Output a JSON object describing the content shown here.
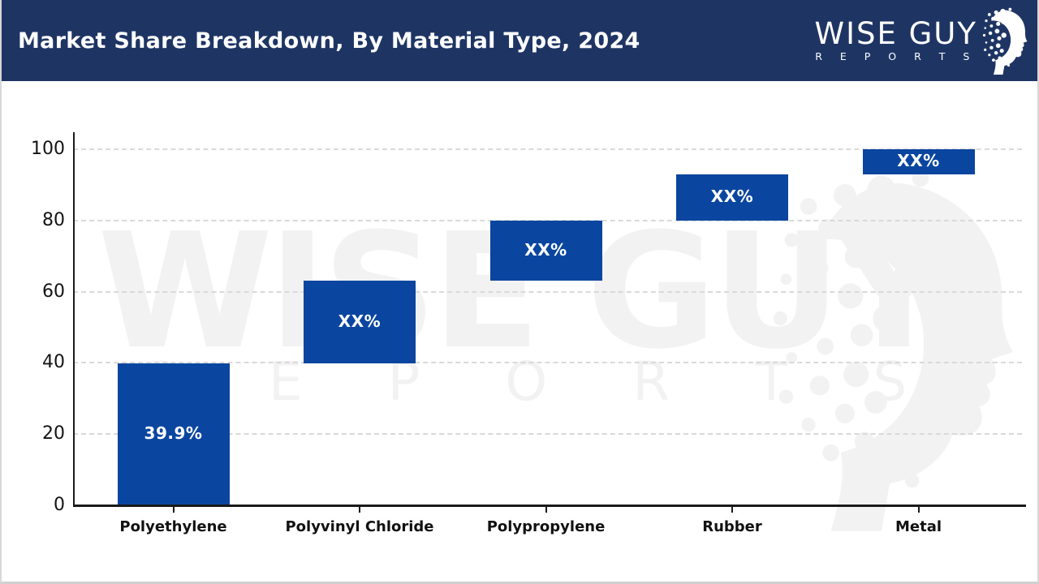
{
  "header": {
    "title": "Market Share Breakdown, By Material Type, 2024",
    "logo": {
      "wordmark": "WISE GUY",
      "subtext": "R E P O R T S"
    }
  },
  "watermark": {
    "line1": "WISE GUY",
    "line2": "R E P O R T S"
  },
  "chart_data": {
    "type": "bar",
    "subtype": "waterfall",
    "title": "Market Share Breakdown, By Material Type, 2024",
    "categories": [
      "Polyethylene",
      "Polyvinyl Chloride",
      "Polypropylene",
      "Rubber",
      "Metal"
    ],
    "segments": [
      {
        "category": "Polyethylene",
        "start": 0,
        "end": 39.9,
        "label": "39.9%"
      },
      {
        "category": "Polyvinyl Chloride",
        "start": 39.9,
        "end": 63,
        "label": "XX%"
      },
      {
        "category": "Polypropylene",
        "start": 63,
        "end": 80,
        "label": "XX%"
      },
      {
        "category": "Rubber",
        "start": 80,
        "end": 93,
        "label": "XX%"
      },
      {
        "category": "Metal",
        "start": 93,
        "end": 100,
        "label": "XX%"
      }
    ],
    "yticks": [
      0,
      20,
      40,
      60,
      80,
      100
    ],
    "ylim": [
      0,
      105
    ],
    "xlabel": "",
    "ylabel": "",
    "grid": "horizontal-dashed",
    "legend": "none",
    "bar_color": "#0a46a0",
    "bar_label_color": "#ffffff"
  },
  "colors": {
    "header_bg": "#1e3564",
    "bar": "#0a46a0",
    "grid": "#d9d9d9",
    "axis": "#1a1a1a",
    "watermark": "#f2f2f3",
    "frame_border": "#d8d8d8"
  }
}
